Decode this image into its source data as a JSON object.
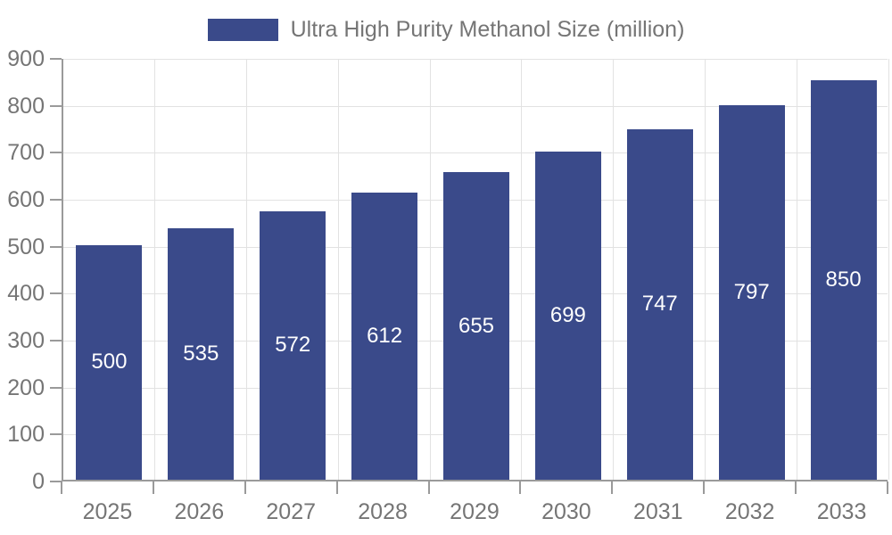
{
  "legend": {
    "label": "Ultra High Purity Methanol Size (million)"
  },
  "colors": {
    "bar": "#3a4a8a",
    "bar_label": "#ffffff",
    "axis_line": "#9a9a9a",
    "gridline": "#e2e2e2",
    "tick_text": "#757575",
    "legend_text": "#757575",
    "background": "#ffffff"
  },
  "chart_data": {
    "type": "bar",
    "title": "",
    "xlabel": "",
    "ylabel": "",
    "categories": [
      "2025",
      "2026",
      "2027",
      "2028",
      "2029",
      "2030",
      "2031",
      "2032",
      "2033"
    ],
    "series": [
      {
        "name": "Ultra High Purity Methanol Size (million)",
        "values": [
          500,
          535,
          572,
          612,
          655,
          699,
          747,
          797,
          850
        ]
      }
    ],
    "ylim": [
      0,
      900
    ],
    "ytick_step": 100,
    "yticks": [
      0,
      100,
      200,
      300,
      400,
      500,
      600,
      700,
      800,
      900
    ],
    "grid": true,
    "vertical_gridlines": true,
    "legend_position": "top",
    "bar_labels_inside": true
  }
}
